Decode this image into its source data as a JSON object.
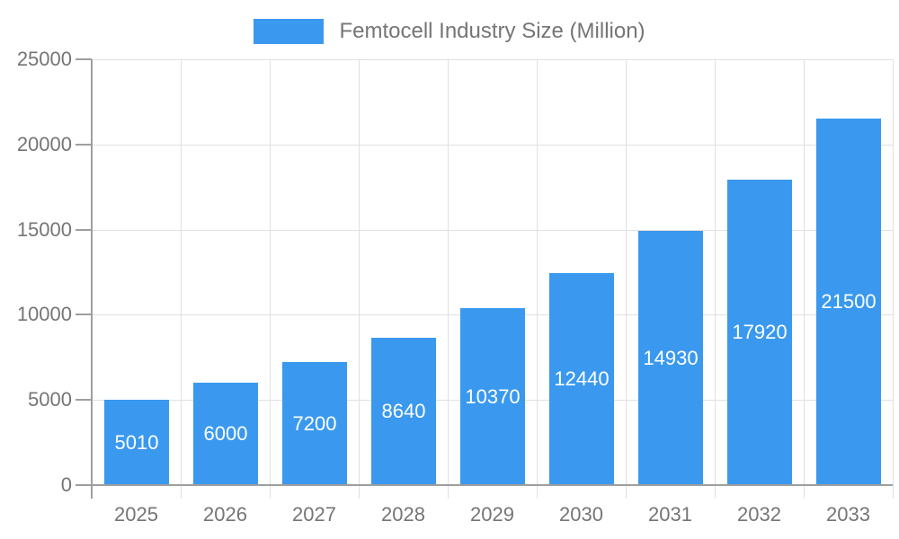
{
  "legend": {
    "label": "Femtocell Industry Size (Million)"
  },
  "colors": {
    "bar": "#3A99EE",
    "grid": "#E0E0E0",
    "axis": "#9E9E9E",
    "axis_text": "#757575",
    "bar_label_text": "#FFFFFF",
    "background": "#FFFFFF"
  },
  "chart_data": {
    "type": "bar",
    "title": "Femtocell Industry Size (Million)",
    "categories": [
      "2025",
      "2026",
      "2027",
      "2028",
      "2029",
      "2030",
      "2031",
      "2032",
      "2033"
    ],
    "values": [
      5010,
      6000,
      7200,
      8640,
      10370,
      12440,
      14930,
      17920,
      21500
    ],
    "xlabel": "",
    "ylabel": "",
    "ylim": [
      0,
      25000
    ],
    "yticks": [
      0,
      5000,
      10000,
      15000,
      20000,
      25000
    ],
    "grid": true,
    "legend_position": "top",
    "value_label_position": "inside-center",
    "bar_color": "#3A99EE"
  }
}
